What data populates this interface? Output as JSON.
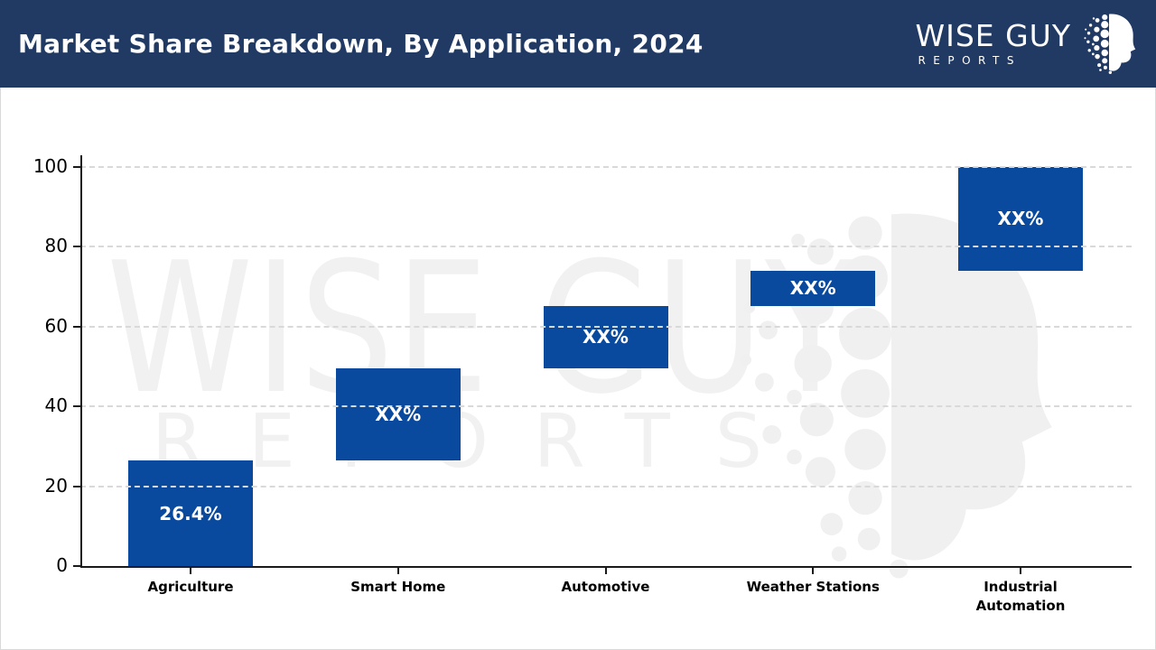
{
  "header": {
    "title": "Market Share Breakdown, By Application, 2024",
    "bg_color": "#213a64",
    "logo": {
      "name": "WISE GUY",
      "tagline": "REPORTS"
    }
  },
  "watermark": {
    "line1": "WISE GUY",
    "line2": "REPORTS"
  },
  "chart_data": {
    "type": "bar",
    "subtype": "waterfall",
    "title": "Market Share Breakdown, By Application, 2024",
    "categories": [
      "Agriculture",
      "Smart Home",
      "Automotive",
      "Weather Stations",
      "Industrial Automation"
    ],
    "segments": [
      {
        "category": "Agriculture",
        "start": 0,
        "end": 26.4,
        "label": "26.4%"
      },
      {
        "category": "Smart Home",
        "start": 26.4,
        "end": 49.6,
        "label": "XX%"
      },
      {
        "category": "Automotive",
        "start": 49.6,
        "end": 65.2,
        "label": "XX%"
      },
      {
        "category": "Weather Stations",
        "start": 65.2,
        "end": 74.0,
        "label": "XX%"
      },
      {
        "category": "Industrial Automation",
        "start": 74.0,
        "end": 100.0,
        "label": "XX%"
      }
    ],
    "ylim": [
      0,
      100
    ],
    "yticks": [
      0,
      20,
      40,
      60,
      80,
      100
    ],
    "grid": true,
    "legend_position": "none",
    "bar_color": "#0a4a9e",
    "label_color": "#ffffff",
    "axis_color": "#1a1a1a",
    "gridline_color": "#d9d9d9",
    "xlabel": "",
    "ylabel": ""
  }
}
